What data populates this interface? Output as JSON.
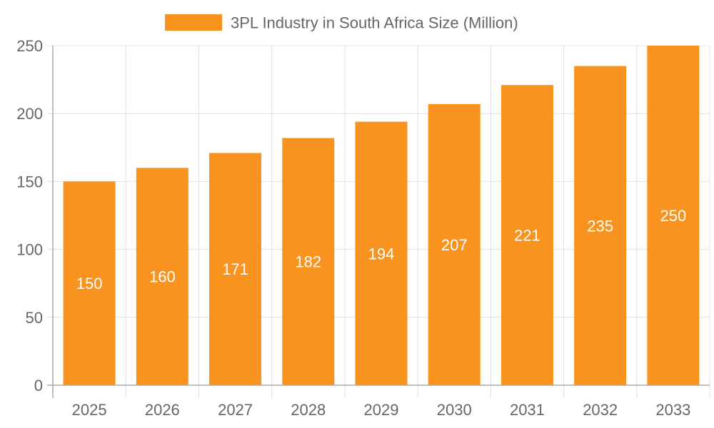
{
  "chart_data": {
    "type": "bar",
    "categories": [
      "2025",
      "2026",
      "2027",
      "2028",
      "2029",
      "2030",
      "2031",
      "2032",
      "2033"
    ],
    "series": [
      {
        "name": "3PL Industry in South Africa Size (Million)",
        "values": [
          150,
          160,
          171,
          182,
          194,
          207,
          221,
          235,
          250
        ],
        "color": "#F7931E"
      }
    ],
    "yticks": [
      0,
      50,
      100,
      150,
      200,
      250
    ],
    "ylim": [
      0,
      250
    ],
    "grid": true,
    "legend": "top-center",
    "data_labels": true,
    "data_label_color": "#ffffff"
  }
}
